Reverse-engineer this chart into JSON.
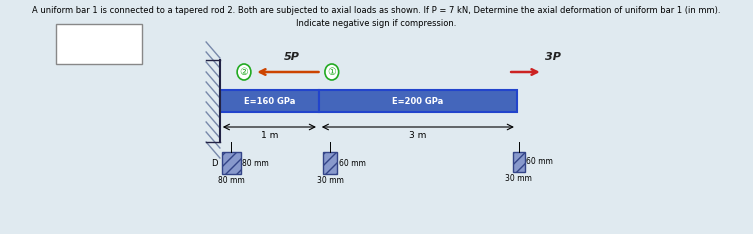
{
  "title_line1": "A uniform bar 1 is connected to a tapered rod 2. Both are subjected to axial loads as shown. If P = 7 kN, Determine the axial deformation of uniform bar 1 (in mm).",
  "title_line2": "Indicate negative sign if compression.",
  "bg_color": "#e0eaf0",
  "bar1_label": "E=160 GPa",
  "bar2_label": "E=200 GPa",
  "bar1_length": "1 m",
  "bar2_length": "3 m",
  "load_left": "5P",
  "load_right": "3P",
  "cross1_w": "80 mm",
  "cross1_h": "80 mm",
  "cross2_w": "30 mm",
  "cross2_h": "60 mm",
  "cross3_w": "30 mm",
  "cross3_h": "60 mm",
  "wall_hatch_color": "#7788aa",
  "bar1_edge": "#2244cc",
  "bar1_face": "#4466bb",
  "bar2_edge": "#2244cc",
  "bar2_face": "#4466bb",
  "arrow5p_color": "#cc4400",
  "arrow3p_color": "#cc2222",
  "cross_face": "#8899cc",
  "cross_edge": "#334488",
  "node_color": "#22aa22"
}
